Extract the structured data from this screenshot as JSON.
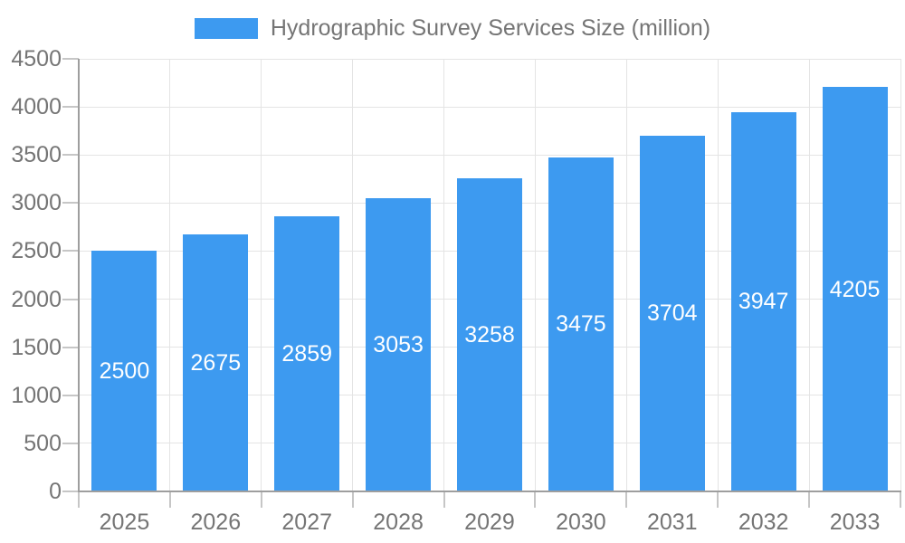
{
  "legend": {
    "label": "Hydrographic Survey Services Size (million)"
  },
  "colors": {
    "bar": "#3D9AF0",
    "bar_label": "#FFFFFF",
    "grid_line": "#E4E4E4",
    "axis_line": "#9E9E9E",
    "tick_mark": "#C6C6C6",
    "axis_text": "#757575",
    "background": "#FFFFFF"
  },
  "chart_data": {
    "type": "bar",
    "title": "Hydrographic Survey Services Size (million)",
    "categories": [
      "2025",
      "2026",
      "2027",
      "2028",
      "2029",
      "2030",
      "2031",
      "2032",
      "2033"
    ],
    "values": [
      2500,
      2675,
      2859,
      3053,
      3258,
      3475,
      3704,
      3947,
      4205
    ],
    "series": [
      {
        "name": "Hydrographic Survey Services Size (million)",
        "values": [
          2500,
          2675,
          2859,
          3053,
          3258,
          3475,
          3704,
          3947,
          4205
        ]
      }
    ],
    "xlabel": "",
    "ylabel": "",
    "ylim": [
      0,
      4500
    ],
    "ytick_step": 500,
    "yticks": [
      0,
      500,
      1000,
      1500,
      2000,
      2500,
      3000,
      3500,
      4000,
      4500
    ],
    "grid": true,
    "legend_position": "top-center",
    "bar_value_labels": "inside-middle-white"
  }
}
